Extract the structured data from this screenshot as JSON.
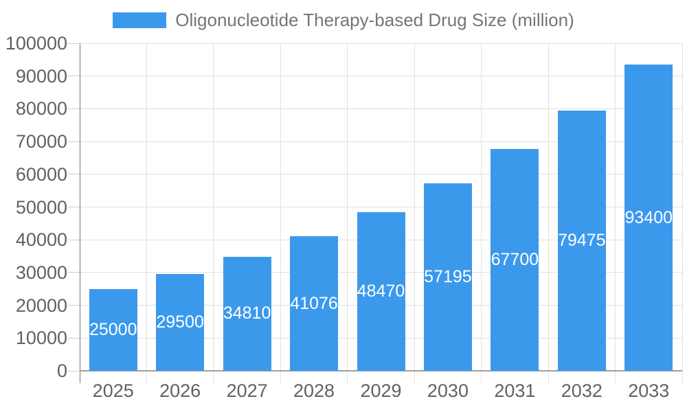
{
  "legend": {
    "label": "Oligonucleotide Therapy-based Drug Size (million)"
  },
  "chart_data": {
    "type": "bar",
    "title": "",
    "xlabel": "",
    "ylabel": "",
    "categories": [
      "2025",
      "2026",
      "2027",
      "2028",
      "2029",
      "2030",
      "2031",
      "2032",
      "2033"
    ],
    "values": [
      25000,
      29500,
      34810,
      41076,
      48470,
      57195,
      67700,
      79475,
      93400
    ],
    "series_name": "Oligonucleotide Therapy-based Drug Size (million)",
    "ylim": [
      0,
      100000
    ],
    "ytick_step": 10000,
    "ytick_labels": [
      "0",
      "10000",
      "20000",
      "30000",
      "40000",
      "50000",
      "60000",
      "70000",
      "80000",
      "90000",
      "100000"
    ],
    "grid": true,
    "legend_position": "top-center",
    "bar_labels_inside": true,
    "colors": {
      "bar": "#3B99EC",
      "bar_label": "#ffffff",
      "legend_text": "#757575",
      "tick_label": "#616161",
      "gridline": "#e0e0e0",
      "tick": "#cccccc",
      "axis_line": "#757575",
      "baseline": "#9e9e9e",
      "background": "#ffffff"
    }
  }
}
